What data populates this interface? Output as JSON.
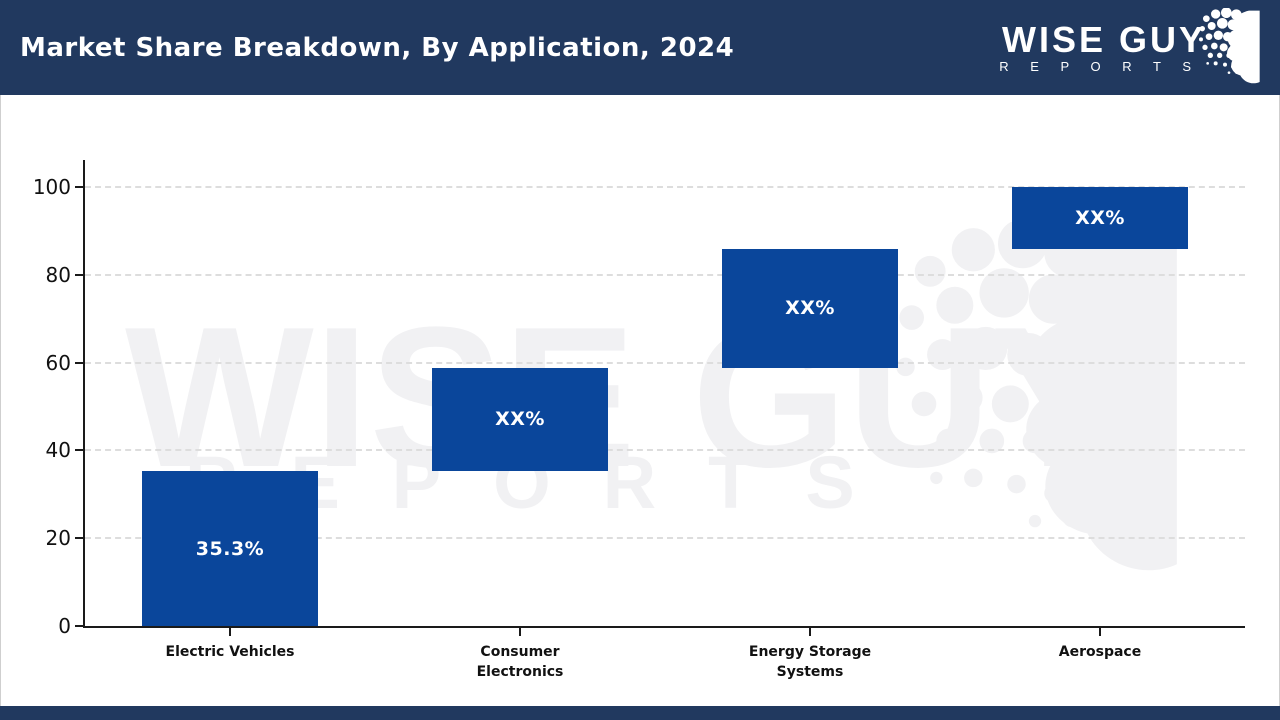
{
  "header": {
    "title": "Market Share Breakdown, By Application, 2024",
    "logo": {
      "line1": "WISE GUY",
      "line2": "R E P O R T S"
    }
  },
  "watermark": {
    "line1": "WISE GUY",
    "line2": "REPORTS"
  },
  "colors": {
    "header_navy": "#21395F",
    "bar_blue": "#0A469B",
    "watermark_gray": "#F1F1F3",
    "gridline_gray": "#DDDDDD"
  },
  "chart_data": {
    "type": "bar",
    "subtype": "waterfall",
    "title": "Market Share Breakdown, By Application, 2024",
    "xlabel": "",
    "ylabel": "",
    "ylim": [
      0,
      106
    ],
    "yticks": [
      0,
      20,
      40,
      60,
      80,
      100
    ],
    "grid": true,
    "categories": [
      "Electric Vehicles",
      "Consumer Electronics",
      "Energy Storage Systems",
      "Aerospace"
    ],
    "category_lines": [
      [
        "Electric Vehicles"
      ],
      [
        "Consumer",
        "Electronics"
      ],
      [
        "Energy Storage",
        "Systems"
      ],
      [
        "Aerospace"
      ]
    ],
    "segments": [
      {
        "category": "Electric Vehicles",
        "start": 0,
        "end": 35.3,
        "label": "35.3%"
      },
      {
        "category": "Consumer Electronics",
        "start": 35.3,
        "end": 58.8,
        "label": "XX%"
      },
      {
        "category": "Energy Storage Systems",
        "start": 58.8,
        "end": 85.9,
        "label": "XX%"
      },
      {
        "category": "Aerospace",
        "start": 85.9,
        "end": 100,
        "label": "XX%"
      }
    ],
    "bar_color": "#0A469B",
    "bar_label_color": "#ffffff",
    "legend": null
  }
}
